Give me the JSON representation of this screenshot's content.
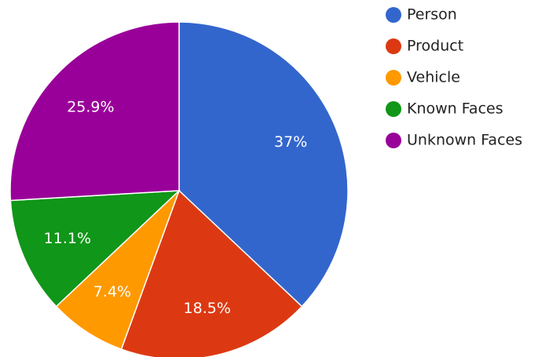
{
  "chart_data": {
    "type": "pie",
    "categories": [
      "Person",
      "Product",
      "Vehicle",
      "Known Faces",
      "Unknown Faces"
    ],
    "values": [
      37,
      18.5,
      7.4,
      11.1,
      25.9
    ],
    "value_labels": [
      "37%",
      "18.5%",
      "7.4%",
      "11.1%",
      "25.9%"
    ],
    "colors": [
      "#3366cc",
      "#dc3912",
      "#ff9900",
      "#109618",
      "#990099"
    ],
    "legend": "right"
  }
}
